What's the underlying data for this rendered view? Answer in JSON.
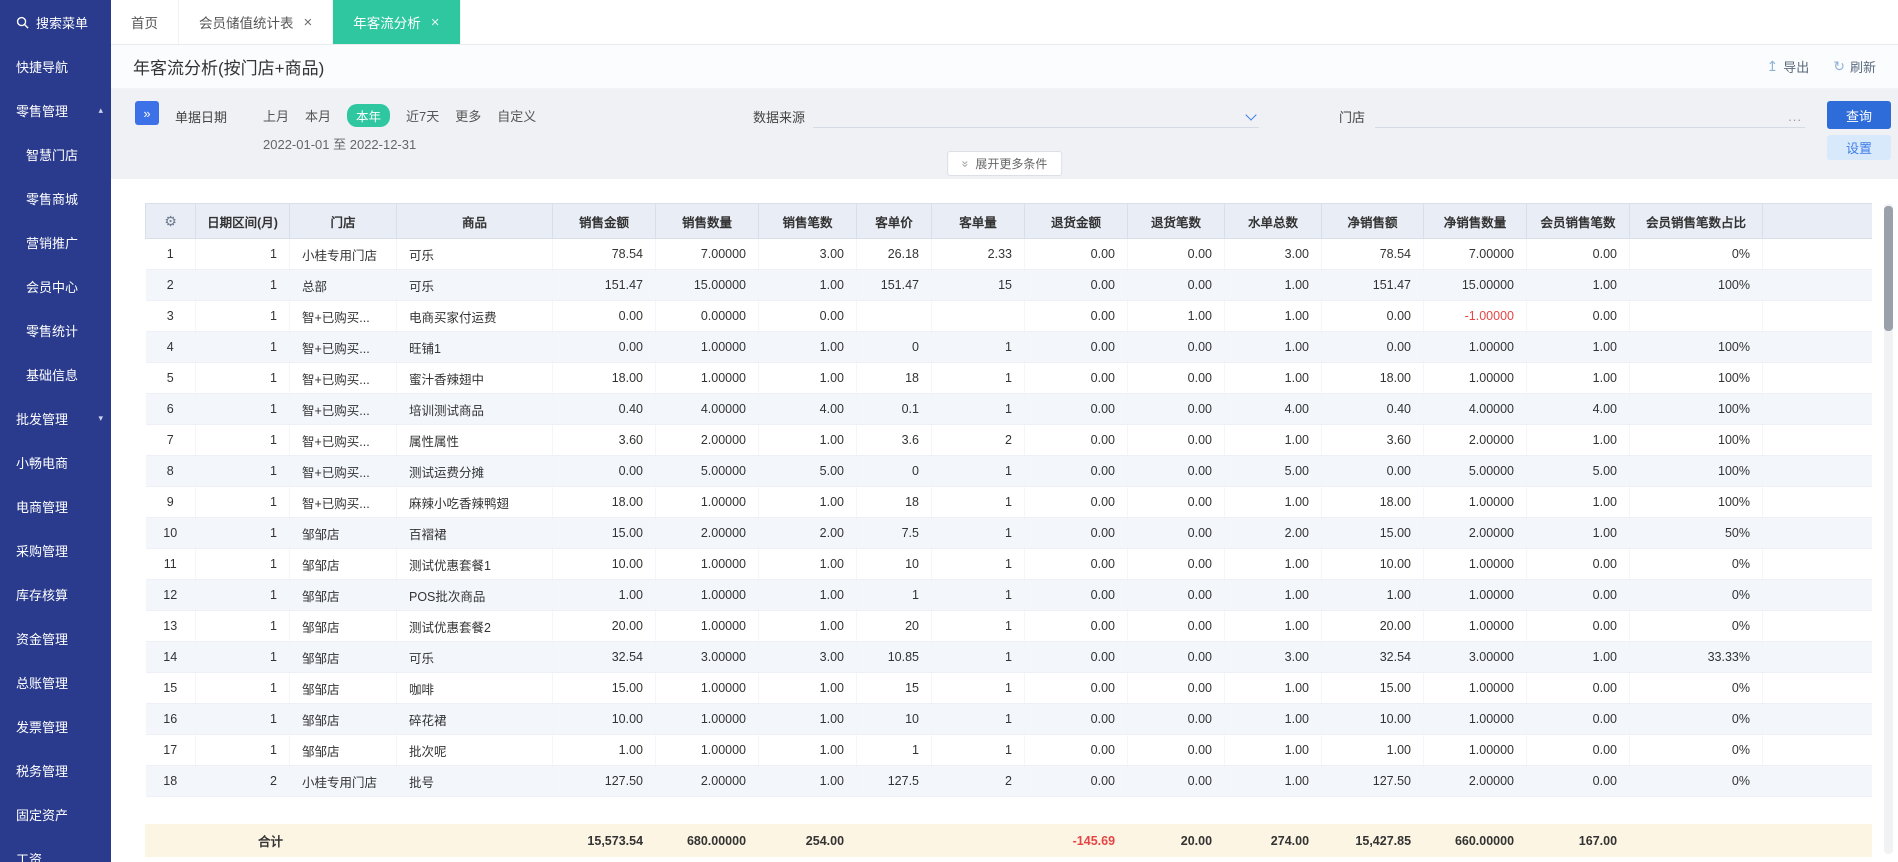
{
  "colors": {
    "accent_green": "#2ec7a0",
    "primary_blue": "#2e6cd9",
    "negative_red": "#e64545",
    "sidebar_blue": "#2a3b8e"
  },
  "icons": {
    "export": "↥",
    "refresh": "↻",
    "gear": "⚙",
    "collapse": "»",
    "expand_more": "»"
  },
  "sidebar": {
    "items": [
      {
        "id": "search-menu",
        "label": "搜索菜单",
        "icon": "search"
      },
      {
        "id": "quick-nav",
        "label": "快捷导航"
      },
      {
        "id": "retail-management",
        "label": "零售管理",
        "arrow": "up",
        "group": true
      },
      {
        "id": "smart-store",
        "label": "智慧门店",
        "sub": true
      },
      {
        "id": "retail-mall",
        "label": "零售商城",
        "sub": true
      },
      {
        "id": "marketing-promotion",
        "label": "营销推广",
        "sub": true
      },
      {
        "id": "member-center",
        "label": "会员中心",
        "sub": true
      },
      {
        "id": "retail-statistics",
        "label": "零售统计",
        "sub": true
      },
      {
        "id": "basic-info",
        "label": "基础信息",
        "sub": true
      },
      {
        "id": "wholesale-management",
        "label": "批发管理",
        "arrow": "down",
        "group": true
      },
      {
        "id": "xiaochang-ecommerce",
        "label": "小畅电商"
      },
      {
        "id": "ecommerce-management",
        "label": "电商管理"
      },
      {
        "id": "purchase-management",
        "label": "采购管理"
      },
      {
        "id": "inventory-accounting",
        "label": "库存核算"
      },
      {
        "id": "funds-management",
        "label": "资金管理"
      },
      {
        "id": "general-ledger",
        "label": "总账管理"
      },
      {
        "id": "invoice-management",
        "label": "发票管理"
      },
      {
        "id": "tax-management",
        "label": "税务管理"
      },
      {
        "id": "fixed-assets",
        "label": "固定资产"
      },
      {
        "id": "salary",
        "label": "工资"
      }
    ]
  },
  "tabs": [
    {
      "id": "home",
      "label": "首页",
      "closable": false,
      "active": false
    },
    {
      "id": "member-stored-value-report",
      "label": "会员储值统计表",
      "closable": true,
      "active": false
    },
    {
      "id": "annual-traffic-analysis",
      "label": "年客流分析",
      "closable": true,
      "active": true
    }
  ],
  "header": {
    "title": "年客流分析(按门店+商品)",
    "export_label": "导出",
    "refresh_label": "刷新"
  },
  "filters": {
    "date_label": "单据日期",
    "quick_options": [
      {
        "id": "last-month",
        "label": "上月"
      },
      {
        "id": "this-month",
        "label": "本月"
      },
      {
        "id": "this-year",
        "label": "本年",
        "selected": true
      },
      {
        "id": "last-7-days",
        "label": "近7天"
      },
      {
        "id": "more",
        "label": "更多"
      },
      {
        "id": "custom",
        "label": "自定义"
      }
    ],
    "date_range": "2022-01-01 至 2022-12-31",
    "source_label": "数据来源",
    "store_label": "门店",
    "store_more": "...",
    "query_button": "查询",
    "settings_button": "设置",
    "expand_button": "展开更多条件"
  },
  "table": {
    "columns": [
      "日期区间(月)",
      "门店",
      "商品",
      "销售金额",
      "销售数量",
      "销售笔数",
      "客单价",
      "客单量",
      "退货金额",
      "退货笔数",
      "水单总数",
      "净销售额",
      "净销售数量",
      "会员销售笔数",
      "会员销售笔数占比"
    ],
    "rows": [
      {
        "num": "1",
        "cells": [
          "1",
          "小桂专用门店",
          "可乐",
          "78.54",
          "7.00000",
          "3.00",
          "26.18",
          "2.33",
          "0.00",
          "0.00",
          "3.00",
          "78.54",
          "7.00000",
          "0.00",
          "0%"
        ]
      },
      {
        "num": "2",
        "cells": [
          "1",
          "总部",
          "可乐",
          "151.47",
          "15.00000",
          "1.00",
          "151.47",
          "15",
          "0.00",
          "0.00",
          "1.00",
          "151.47",
          "15.00000",
          "1.00",
          "100%"
        ]
      },
      {
        "num": "3",
        "cells": [
          "1",
          "智+已购买...",
          "电商买家付运费",
          "0.00",
          "0.00000",
          "0.00",
          "",
          "",
          "0.00",
          "1.00",
          "1.00",
          "0.00",
          "-1.00000",
          "0.00",
          ""
        ]
      },
      {
        "num": "4",
        "cells": [
          "1",
          "智+已购买...",
          "旺铺1",
          "0.00",
          "1.00000",
          "1.00",
          "0",
          "1",
          "0.00",
          "0.00",
          "1.00",
          "0.00",
          "1.00000",
          "1.00",
          "100%"
        ]
      },
      {
        "num": "5",
        "cells": [
          "1",
          "智+已购买...",
          "蜜汁香辣翅中",
          "18.00",
          "1.00000",
          "1.00",
          "18",
          "1",
          "0.00",
          "0.00",
          "1.00",
          "18.00",
          "1.00000",
          "1.00",
          "100%"
        ]
      },
      {
        "num": "6",
        "cells": [
          "1",
          "智+已购买...",
          "培训测试商品",
          "0.40",
          "4.00000",
          "4.00",
          "0.1",
          "1",
          "0.00",
          "0.00",
          "4.00",
          "0.40",
          "4.00000",
          "4.00",
          "100%"
        ]
      },
      {
        "num": "7",
        "cells": [
          "1",
          "智+已购买...",
          "属性属性",
          "3.60",
          "2.00000",
          "1.00",
          "3.6",
          "2",
          "0.00",
          "0.00",
          "1.00",
          "3.60",
          "2.00000",
          "1.00",
          "100%"
        ]
      },
      {
        "num": "8",
        "cells": [
          "1",
          "智+已购买...",
          "测试运费分摊",
          "0.00",
          "5.00000",
          "5.00",
          "0",
          "1",
          "0.00",
          "0.00",
          "5.00",
          "0.00",
          "5.00000",
          "5.00",
          "100%"
        ]
      },
      {
        "num": "9",
        "cells": [
          "1",
          "智+已购买...",
          "麻辣小吃香辣鸭翅",
          "18.00",
          "1.00000",
          "1.00",
          "18",
          "1",
          "0.00",
          "0.00",
          "1.00",
          "18.00",
          "1.00000",
          "1.00",
          "100%"
        ]
      },
      {
        "num": "10",
        "cells": [
          "1",
          "邹邹店",
          "百褶裙",
          "15.00",
          "2.00000",
          "2.00",
          "7.5",
          "1",
          "0.00",
          "0.00",
          "2.00",
          "15.00",
          "2.00000",
          "1.00",
          "50%"
        ]
      },
      {
        "num": "11",
        "cells": [
          "1",
          "邹邹店",
          "测试优惠套餐1",
          "10.00",
          "1.00000",
          "1.00",
          "10",
          "1",
          "0.00",
          "0.00",
          "1.00",
          "10.00",
          "1.00000",
          "0.00",
          "0%"
        ]
      },
      {
        "num": "12",
        "cells": [
          "1",
          "邹邹店",
          "POS批次商品",
          "1.00",
          "1.00000",
          "1.00",
          "1",
          "1",
          "0.00",
          "0.00",
          "1.00",
          "1.00",
          "1.00000",
          "0.00",
          "0%"
        ]
      },
      {
        "num": "13",
        "cells": [
          "1",
          "邹邹店",
          "测试优惠套餐2",
          "20.00",
          "1.00000",
          "1.00",
          "20",
          "1",
          "0.00",
          "0.00",
          "1.00",
          "20.00",
          "1.00000",
          "0.00",
          "0%"
        ]
      },
      {
        "num": "14",
        "cells": [
          "1",
          "邹邹店",
          "可乐",
          "32.54",
          "3.00000",
          "3.00",
          "10.85",
          "1",
          "0.00",
          "0.00",
          "3.00",
          "32.54",
          "3.00000",
          "1.00",
          "33.33%"
        ]
      },
      {
        "num": "15",
        "cells": [
          "1",
          "邹邹店",
          "咖啡",
          "15.00",
          "1.00000",
          "1.00",
          "15",
          "1",
          "0.00",
          "0.00",
          "1.00",
          "15.00",
          "1.00000",
          "0.00",
          "0%"
        ]
      },
      {
        "num": "16",
        "cells": [
          "1",
          "邹邹店",
          "碎花裙",
          "10.00",
          "1.00000",
          "1.00",
          "10",
          "1",
          "0.00",
          "0.00",
          "1.00",
          "10.00",
          "1.00000",
          "0.00",
          "0%"
        ]
      },
      {
        "num": "17",
        "cells": [
          "1",
          "邹邹店",
          "批次呢",
          "1.00",
          "1.00000",
          "1.00",
          "1",
          "1",
          "0.00",
          "0.00",
          "1.00",
          "1.00",
          "1.00000",
          "0.00",
          "0%"
        ]
      },
      {
        "num": "18",
        "cells": [
          "2",
          "小桂专用门店",
          "批号",
          "127.50",
          "2.00000",
          "1.00",
          "127.5",
          "2",
          "0.00",
          "0.00",
          "1.00",
          "127.50",
          "2.00000",
          "0.00",
          "0%"
        ]
      }
    ],
    "footer": {
      "label": "合计",
      "cells": [
        "",
        "15,573.54",
        "680.00000",
        "254.00",
        "",
        "",
        "-145.69",
        "20.00",
        "274.00",
        "15,427.85",
        "660.00000",
        "167.00",
        ""
      ]
    }
  }
}
